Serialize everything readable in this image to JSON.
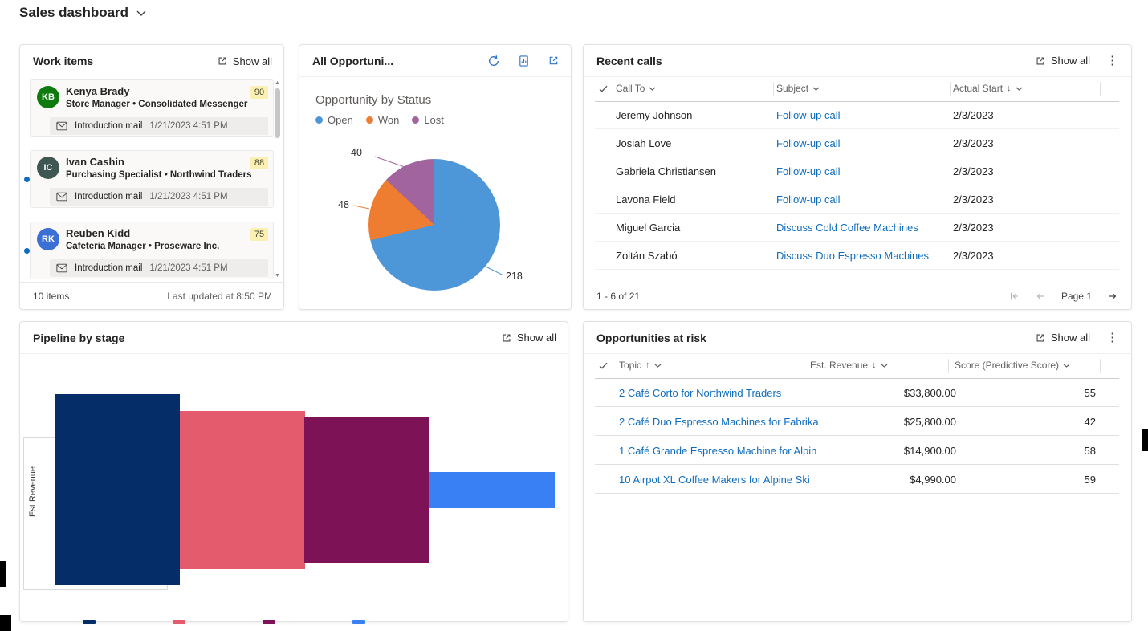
{
  "page": {
    "title": "Sales dashboard",
    "colors": {
      "link": "#0F6CBD",
      "accent_icon": "#2E74C5",
      "text_primary": "#242424",
      "text_secondary": "#616161",
      "score_badge_bg": "#FBF0B4",
      "unread_dot": "#0F6CBD"
    }
  },
  "glyphs": {
    "kebab": "⋮",
    "sort_desc": "↓",
    "sort_asc": "↑",
    "scroll_up": "▲",
    "scroll_down": "▼"
  },
  "icons": {
    "show_all": "open-in-new-popout",
    "more_options": "vertical-ellipsis",
    "refresh": "circular-arrow",
    "report": "document-chart",
    "mail": "envelope",
    "header_check": "checkmark",
    "column_menu": "chevron-down",
    "title_dropdown": "chevron-down",
    "first_page": "arrow-to-start",
    "previous_page": "left-arrow",
    "next_page": "right-arrow"
  },
  "work_items": {
    "title": "Work items",
    "show_all_label": "Show all",
    "items": [
      {
        "initials": "KB",
        "avatar_color": "#0F7B0F",
        "unread": false,
        "name": "Kenya Brady",
        "score": "90",
        "role": "Store Manager • Consolidated Messenger",
        "activity": "Introduction mail",
        "activity_date": "1/21/2023 4:51 PM"
      },
      {
        "initials": "IC",
        "avatar_color": "#3F5752",
        "unread": true,
        "name": "Ivan Cashin",
        "score": "88",
        "role": "Purchasing Specialist • Northwind Traders",
        "activity": "Introduction mail",
        "activity_date": "1/21/2023 4:51 PM"
      },
      {
        "initials": "RK",
        "avatar_color": "#3B6FD4",
        "unread": true,
        "name": "Reuben Kidd",
        "score": "75",
        "role": "Cafeteria Manager • Proseware Inc.",
        "activity": "Introduction mail",
        "activity_date": "1/21/2023 4:51 PM"
      }
    ],
    "footer_left": "10 items",
    "footer_right": "Last updated at 8:50 PM"
  },
  "all_opportunities": {
    "title": "All Opportuni..."
  },
  "recent_calls": {
    "title": "Recent calls",
    "show_all_label": "Show all",
    "columns": {
      "call_to": "Call To",
      "subject": "Subject",
      "actual_start": "Actual Start"
    },
    "rows": [
      {
        "call_to": "Jeremy Johnson",
        "subject": "Follow-up call",
        "actual_start": "2/3/2023"
      },
      {
        "call_to": "Josiah Love",
        "subject": "Follow-up call",
        "actual_start": "2/3/2023"
      },
      {
        "call_to": "Gabriela Christiansen",
        "subject": "Follow-up call",
        "actual_start": "2/3/2023"
      },
      {
        "call_to": "Lavona Field",
        "subject": "Follow-up call",
        "actual_start": "2/3/2023"
      },
      {
        "call_to": "Miguel Garcia",
        "subject": "Discuss Cold Coffee Machines",
        "actual_start": "2/3/2023"
      },
      {
        "call_to": "Zoltán Szabó",
        "subject": "Discuss Duo Espresso Machines",
        "actual_start": "2/3/2023"
      }
    ],
    "footer": {
      "range": "1 - 6 of 21",
      "page_label": "Page 1"
    }
  },
  "pipeline": {
    "title": "Pipeline by stage",
    "show_all_label": "Show all"
  },
  "opportunities_at_risk": {
    "title": "Opportunities at risk",
    "show_all_label": "Show all",
    "columns": {
      "topic": "Topic",
      "est_revenue": "Est. Revenue",
      "score": "Score (Predictive Score)"
    },
    "rows": [
      {
        "topic": "2 Café Corto for Northwind Traders",
        "est_revenue": "$33,800.00",
        "score": "55"
      },
      {
        "topic": "2 Café Duo Espresso Machines for Fabrika",
        "est_revenue": "$25,800.00",
        "score": "42"
      },
      {
        "topic": "1 Café Grande Espresso Machine for Alpin",
        "est_revenue": "$14,900.00",
        "score": "58"
      },
      {
        "topic": "10 Airpot XL Coffee Makers for Alpine Ski",
        "est_revenue": "$4,990.00",
        "score": "59"
      }
    ]
  },
  "chart_data": [
    {
      "type": "pie",
      "title": "Opportunity by Status",
      "legend": [
        "Open",
        "Won",
        "Lost"
      ],
      "values": [
        218,
        48,
        40
      ],
      "colors": [
        "#4D97D9",
        "#EE7D31",
        "#A1649E"
      ],
      "legend_position": "top-left",
      "data_labels_visible": true
    },
    {
      "type": "funnel",
      "title": "Pipeline by stage",
      "ylabel": "Est Revenue",
      "values": [
        238,
        197,
        182,
        45
      ],
      "values_note": "relative stage sizes estimated from pixel heights; axis has no tick labels",
      "colors": [
        "#052E69",
        "#E45B6D",
        "#7D1356",
        "#3980F4"
      ],
      "legend_truncated": true
    }
  ]
}
